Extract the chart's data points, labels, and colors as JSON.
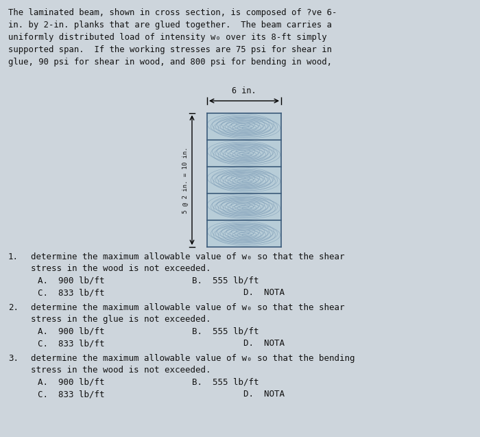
{
  "bg_color": "#cdd5dc",
  "title_lines": [
    "The laminated beam, shown in cross section, is composed of ?ve 6-",
    "in. by 2-in. planks that are glued together.  The beam carries a",
    "uniformly distributed load of intensity w₀ over its 8-ft simply",
    "supported span.  If the working stresses are 75 psi for shear in",
    "glue, 90 psi for shear in wood, and 800 psi for bending in wood,"
  ],
  "plank_fill": "#b8cdd8",
  "plank_border": "#3a5a7a",
  "grain_color": "#7a9ab5",
  "num_planks": 5,
  "dim_6in": "6 in.",
  "dim_height": "5 @ 2 in. = 10 in.",
  "questions": [
    {
      "num": "1.",
      "line1": "determine the maximum allowable value of w₀ so that the shear",
      "line2": "stress in the wood is not exceeded.",
      "A": "A.  900 lb/ft",
      "B": "B.  555 lb/ft",
      "C": "C.  833 lb/ft",
      "D": "D.  NOTA"
    },
    {
      "num": "2.",
      "line1": "determine the maximum allowable value of w₀ so that the shear",
      "line2": "stress in the glue is not exceeded.",
      "A": "A.  900 lb/ft",
      "B": "B.  555 lb/ft",
      "C": "C.  833 lb/ft",
      "D": "D.  NOTA"
    },
    {
      "num": "3.",
      "line1": "determine the maximum allowable value of w₀ so that the bending",
      "line2": "stress in the wood is not exceeded.",
      "A": "A.  900 lb/ft",
      "B": "B.  555 lb/ft",
      "C": "C.  833 lb/ft",
      "D": "D.  NOTA"
    }
  ]
}
